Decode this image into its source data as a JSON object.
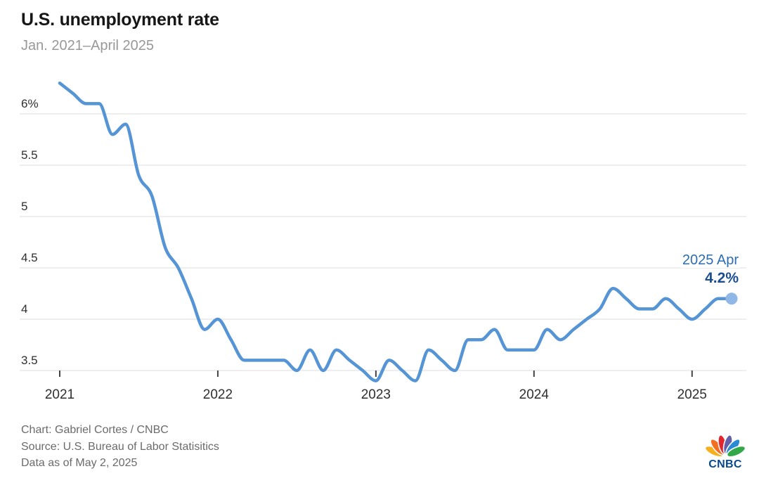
{
  "header": {
    "title": "U.S. unemployment rate",
    "subtitle": "Jan. 2021–April 2025"
  },
  "chart_data": {
    "type": "line",
    "title": "U.S. unemployment rate",
    "subtitle": "Jan. 2021–April 2025",
    "x_start": "2021-01",
    "x_end": "2025-04",
    "ylim": [
      3.3,
      6.4
    ],
    "grid": true,
    "y_ticks": [
      {
        "value": 6.0,
        "label": "6%"
      },
      {
        "value": 5.5,
        "label": "5.5"
      },
      {
        "value": 5.0,
        "label": "5"
      },
      {
        "value": 4.5,
        "label": "4.5"
      },
      {
        "value": 4.0,
        "label": "4"
      },
      {
        "value": 3.5,
        "label": "3.5"
      }
    ],
    "x_ticks": [
      {
        "month_index": 0,
        "label": "2021"
      },
      {
        "month_index": 12,
        "label": "2022"
      },
      {
        "month_index": 24,
        "label": "2023"
      },
      {
        "month_index": 36,
        "label": "2024"
      },
      {
        "month_index": 48,
        "label": "2025"
      }
    ],
    "series": [
      {
        "name": "Unemployment rate (%)",
        "values": [
          6.3,
          6.2,
          6.1,
          6.1,
          5.8,
          5.9,
          5.4,
          5.2,
          4.7,
          4.5,
          4.2,
          3.9,
          4.0,
          3.8,
          3.6,
          3.6,
          3.6,
          3.6,
          3.5,
          3.7,
          3.5,
          3.7,
          3.6,
          3.5,
          3.4,
          3.6,
          3.5,
          3.4,
          3.7,
          3.6,
          3.5,
          3.8,
          3.8,
          3.9,
          3.7,
          3.7,
          3.7,
          3.9,
          3.8,
          3.9,
          4.0,
          4.1,
          4.3,
          4.2,
          4.1,
          4.1,
          4.2,
          4.1,
          4.0,
          4.1,
          4.2,
          4.2
        ]
      }
    ],
    "annotation": {
      "label": "2025 Apr",
      "value": "4.2%",
      "label_color": "#2d6db3",
      "value_color": "#1b4e90"
    },
    "line_color": "#5594d5",
    "dot_color": "#8fb8e6",
    "grid_color": "#dcdcdc",
    "axis_text_color": "#2f2f2f",
    "tick_color": "#444444"
  },
  "footer": {
    "lines": [
      "Chart: Gabriel Cortes / CNBC",
      "Source: U.S. Bureau of Labor Statisitics",
      "Data as of May 2, 2025"
    ]
  },
  "logo": {
    "text": "CNBC",
    "text_color": "#07498f",
    "feather_colors": [
      "#f6b01e",
      "#f36f21",
      "#e2262d",
      "#6460aa",
      "#2a8ad2",
      "#33a848"
    ]
  }
}
